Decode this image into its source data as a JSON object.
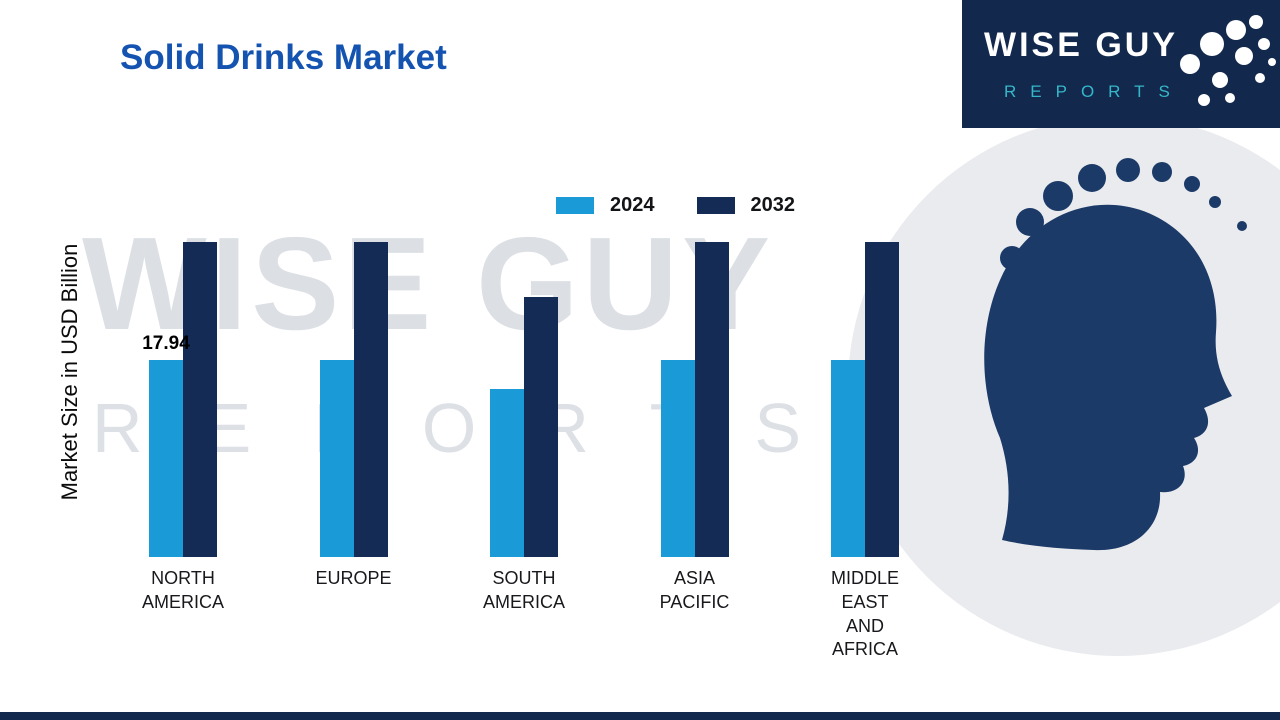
{
  "title": "Solid Drinks Market",
  "logo": {
    "brand": "WISE GUY",
    "word": "REPORTS"
  },
  "watermark": {
    "brand": "WISE GUY",
    "word": "REPORTS"
  },
  "colors": {
    "title_blue": "#1453b0",
    "bar_blue": "#1b9ad8",
    "bar_navy": "#142c55",
    "logo_navy": "#12294d",
    "logo_teal": "#36b7c9",
    "watermark_gray": "#dcdfe4"
  },
  "chart_data": {
    "type": "bar",
    "title": "Solid Drinks Market",
    "ylabel": "Market Size in USD Billion",
    "ylim": [
      0,
      30
    ],
    "grid": false,
    "legend_position": "top",
    "categories": [
      "NORTH\nAMERICA",
      "EUROPE",
      "SOUTH\nAMERICA",
      "ASIA\nPACIFIC",
      "MIDDLE\nEAST\nAND\nAFRICA"
    ],
    "series": [
      {
        "name": "2024",
        "color": "#1b9ad8",
        "values": [
          17.94,
          17.9,
          15.3,
          17.9,
          17.9
        ]
      },
      {
        "name": "2032",
        "color": "#142c55",
        "values": [
          28.6,
          28.6,
          23.6,
          28.6,
          28.6
        ]
      }
    ],
    "annotation": {
      "text": "17.94",
      "category_index": 0,
      "series_index": 0
    }
  }
}
